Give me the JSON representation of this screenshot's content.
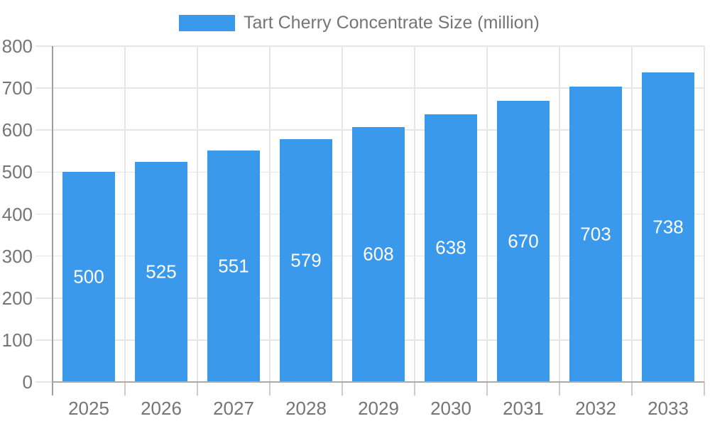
{
  "chart_data": {
    "type": "bar",
    "title": "Tart Cherry Concentrate Size (million)",
    "series_name": "Tart Cherry Concentrate Size (million)",
    "categories": [
      "2025",
      "2026",
      "2027",
      "2028",
      "2029",
      "2030",
      "2031",
      "2032",
      "2033"
    ],
    "values": [
      500,
      525,
      551,
      579,
      608,
      638,
      670,
      703,
      738
    ],
    "bar_labels": [
      "500",
      "525",
      "551",
      "579",
      "608",
      "638",
      "670",
      "703",
      "738"
    ],
    "xlabel": "",
    "ylabel": "",
    "ylim": [
      0,
      800
    ],
    "yticks": [
      0,
      100,
      200,
      300,
      400,
      500,
      600,
      700,
      800
    ],
    "grid": true,
    "legend_position": "top",
    "colors": {
      "bar": "#3B99EC",
      "bar_label_text": "#ffffff",
      "axis_text": "#757575",
      "grid_line": "#e6e6e6",
      "axis_line": "#9e9e9e",
      "background": "#ffffff"
    }
  }
}
